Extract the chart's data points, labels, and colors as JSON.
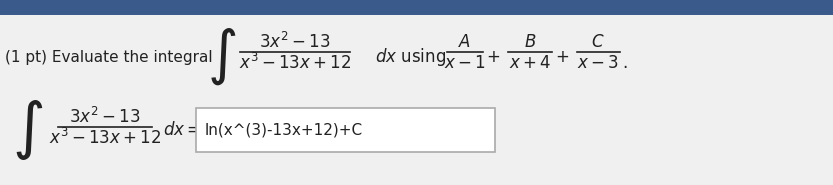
{
  "bg_color": "#e8e8e8",
  "top_bar_color": "#3a5a8c",
  "white_area_color": "#f0f0f0",
  "text_color": "#222222",
  "answer_box_color": "#ffffff",
  "answer_box_border": "#aaaaaa",
  "prefix_text": "(1 pt) Evaluate the integral",
  "integral_numerator_top": "3x² – 13",
  "integral_denominator_top": "x³ – 13x + 12",
  "dx_using": "dx using",
  "partial_fractions": "A/(x−1) + B/(x+4) + C/(x−3)",
  "integral_numerator_bot": "3x² – 13",
  "integral_denominator_bot": "x³ – 13x + 12",
  "answer_text": "ln(x^(3)-13x+12)+C",
  "dx_label": "dx ="
}
